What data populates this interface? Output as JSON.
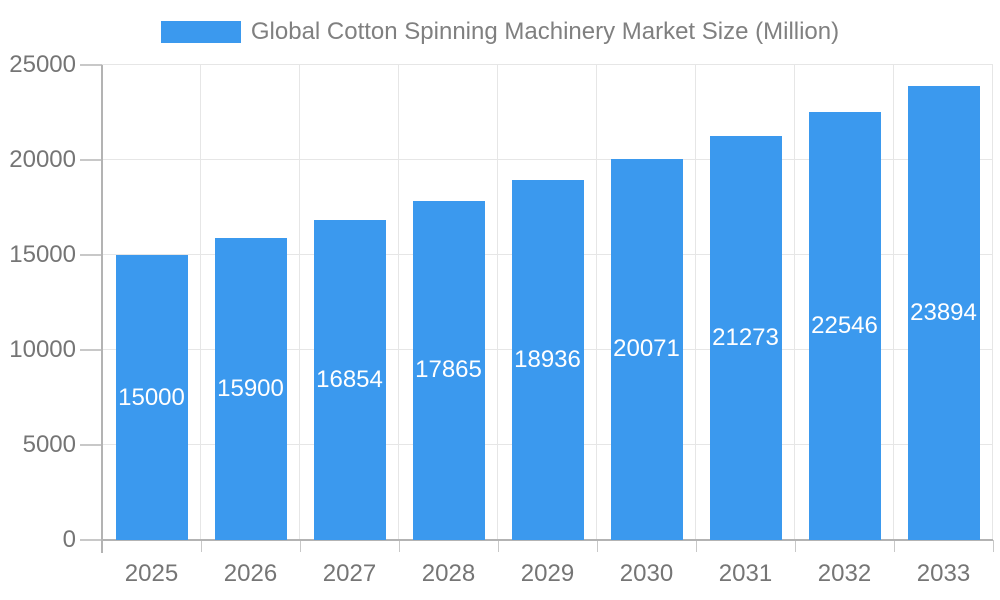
{
  "chart_data": {
    "type": "bar",
    "title": "Global Cotton Spinning Machinery Market Size (Million)",
    "legend": {
      "label": "Global Cotton Spinning Machinery Market Size (Million)",
      "position": "top"
    },
    "categories": [
      "2025",
      "2026",
      "2027",
      "2028",
      "2029",
      "2030",
      "2031",
      "2032",
      "2033"
    ],
    "values": [
      15000,
      15900,
      16854,
      17865,
      18936,
      20071,
      21273,
      22546,
      23894
    ],
    "xlabel": "",
    "ylabel": "",
    "ylim": [
      0,
      25000
    ],
    "yticks": [
      0,
      5000,
      10000,
      15000,
      20000,
      25000
    ],
    "grid": true,
    "bar_color": "#3b99ee",
    "bar_label_color": "#ffffff",
    "colors": {
      "axis_line": "#b3b3b3",
      "gridline": "#e6e6e6",
      "tick": "#c8c8c8",
      "axis_text": "#757575",
      "legend_text": "#808080",
      "background": "#ffffff"
    }
  }
}
